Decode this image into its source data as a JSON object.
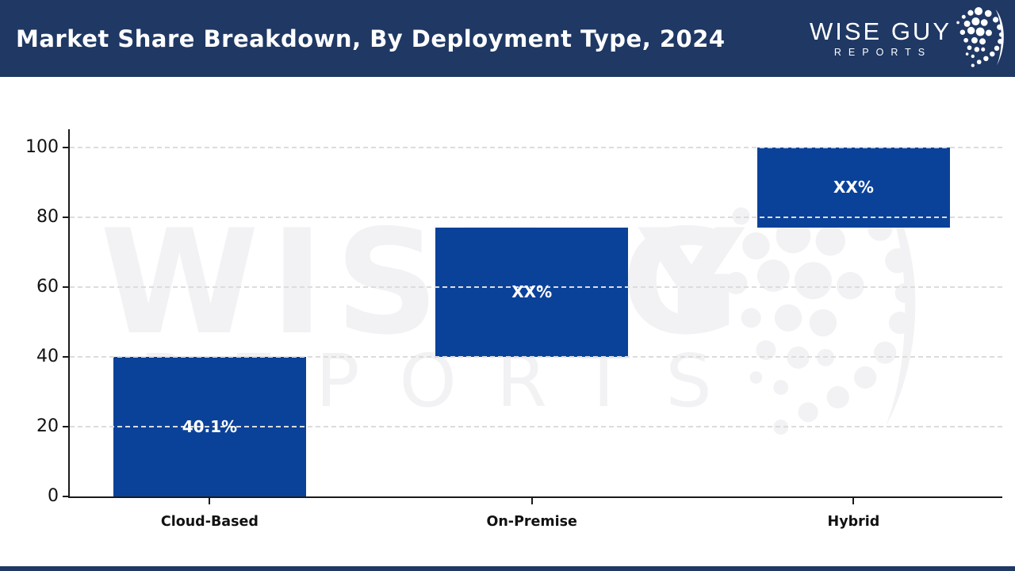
{
  "header": {
    "title": "Market Share Breakdown, By Deployment Type, 2024",
    "logo": {
      "primary": "WISE GUY",
      "secondary": "REPORTS"
    }
  },
  "watermark": {
    "line1": "WISE G",
    "line1_tail": "Y",
    "line2": "REPORTS"
  },
  "colors": {
    "header_bg": "#1f3864",
    "footer_bg": "#1f3864",
    "bar": "#0b4299",
    "bar_label": "#ffffff",
    "grid": "#dcdcdc",
    "axis": "#1a1a1a",
    "watermark": "#f2f2f4"
  },
  "chart_data": {
    "type": "bar",
    "subtype": "floating-waterfall",
    "title": "Market Share Breakdown, By Deployment Type, 2024",
    "xlabel": "",
    "ylabel": "",
    "categories": [
      "Cloud-Based",
      "On-Premise",
      "Hybrid"
    ],
    "segments": [
      {
        "category": "Cloud-Based",
        "start": 0,
        "end": 40.1,
        "label": "40.1%"
      },
      {
        "category": "On-Premise",
        "start": 40.1,
        "end": 77,
        "label": "XX%"
      },
      {
        "category": "Hybrid",
        "start": 77,
        "end": 100,
        "label": "XX%"
      }
    ],
    "yticks": [
      0,
      20,
      40,
      60,
      80,
      100
    ],
    "ylim": [
      0,
      105.2
    ],
    "grid": "dashed-horizontal",
    "legend": "none",
    "bar_center_fracs": [
      0.15,
      0.4955,
      0.8405
    ],
    "bar_width_frac": 0.2066
  }
}
